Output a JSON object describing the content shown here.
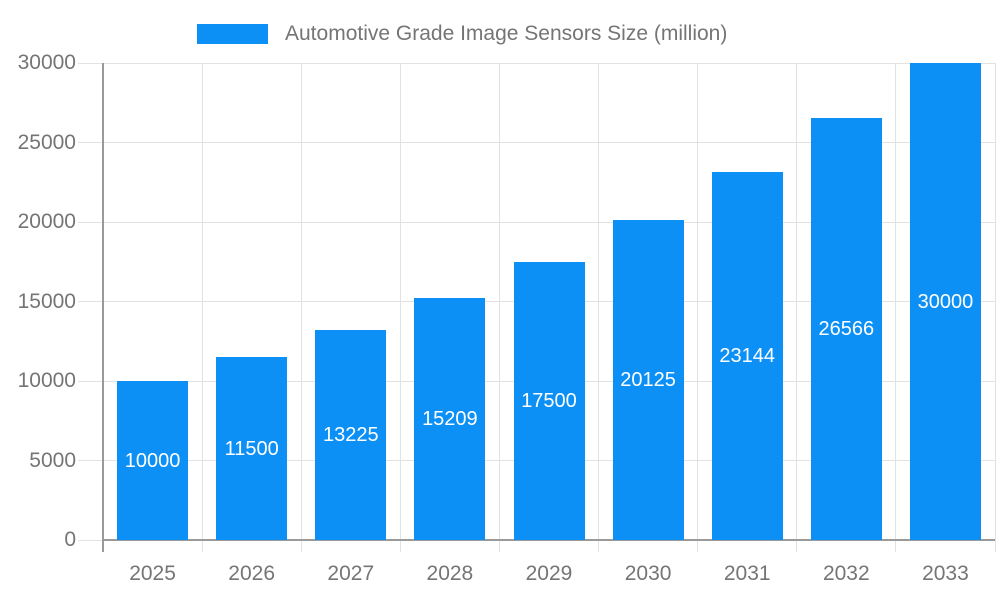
{
  "chart_data": {
    "type": "bar",
    "title": "Automotive Grade Image Sensors Size (million)",
    "categories": [
      "2025",
      "2026",
      "2027",
      "2028",
      "2029",
      "2030",
      "2031",
      "2032",
      "2033"
    ],
    "series": [
      {
        "name": "Automotive Grade Image Sensors Size (million)",
        "values": [
          10000,
          11500,
          13225,
          15209,
          17500,
          20125,
          23144,
          26566,
          30000
        ]
      }
    ],
    "values": [
      10000,
      11500,
      13225,
      15209,
      17500,
      20125,
      23144,
      26566,
      30000
    ],
    "value_labels": [
      "10000",
      "11500",
      "13225",
      "15209",
      "17500",
      "20125",
      "23144",
      "26566",
      "30000"
    ],
    "xlabel": "",
    "ylabel": "",
    "ylim": [
      0,
      30000
    ],
    "yticks": [
      0,
      5000,
      10000,
      15000,
      20000,
      25000,
      30000
    ],
    "ytick_labels": [
      "0",
      "5000",
      "10000",
      "15000",
      "20000",
      "25000",
      "30000"
    ],
    "grid": true,
    "legend_position": "top",
    "colors": {
      "bar": "#0d90f5",
      "grid_line": "#e2e2e2",
      "axis_line": "#9a9a9a",
      "axis_text": "#757575",
      "value_label_text": "#ffffff",
      "background": "#ffffff"
    }
  }
}
